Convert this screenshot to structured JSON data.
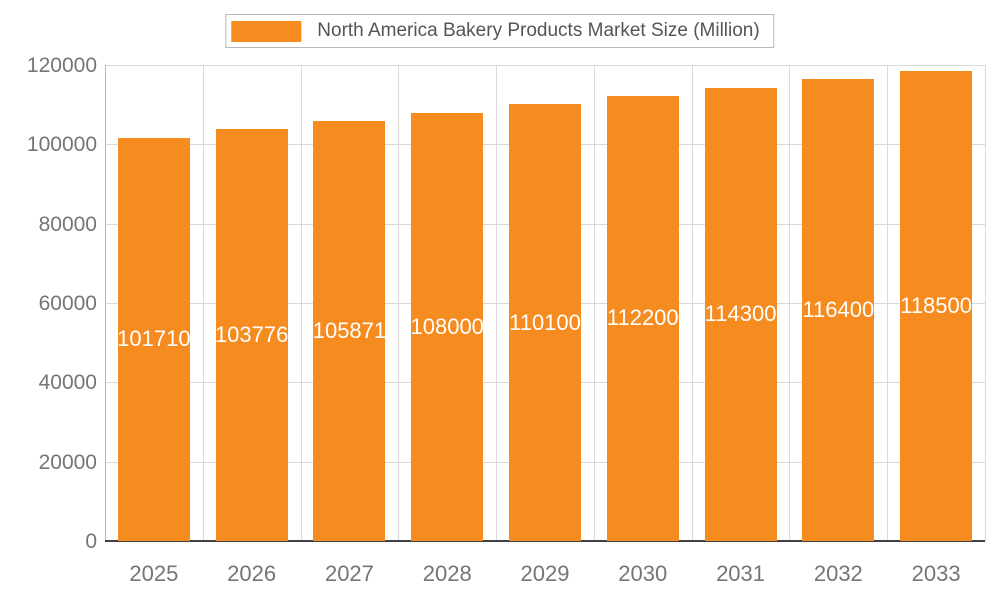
{
  "legend": {
    "title": "North America Bakery Products Market Size (Million)"
  },
  "chart_data": {
    "type": "bar",
    "title": "North America Bakery Products Market Size (Million)",
    "categories": [
      "2025",
      "2026",
      "2027",
      "2028",
      "2029",
      "2030",
      "2031",
      "2032",
      "2033"
    ],
    "values": [
      101710,
      103776,
      105871,
      108000,
      110100,
      112200,
      114300,
      116400,
      118500
    ],
    "xlabel": "",
    "ylabel": "",
    "ylim": [
      0,
      120000
    ],
    "ytick_step": 20000,
    "ytick_labels": [
      "0",
      "20000",
      "40000",
      "60000",
      "80000",
      "100000",
      "120000"
    ],
    "grid": true,
    "legend_position": "top",
    "bar_color": "#F68B1F",
    "value_label_color": "#ffffff",
    "tick_label_color": "#757575"
  }
}
